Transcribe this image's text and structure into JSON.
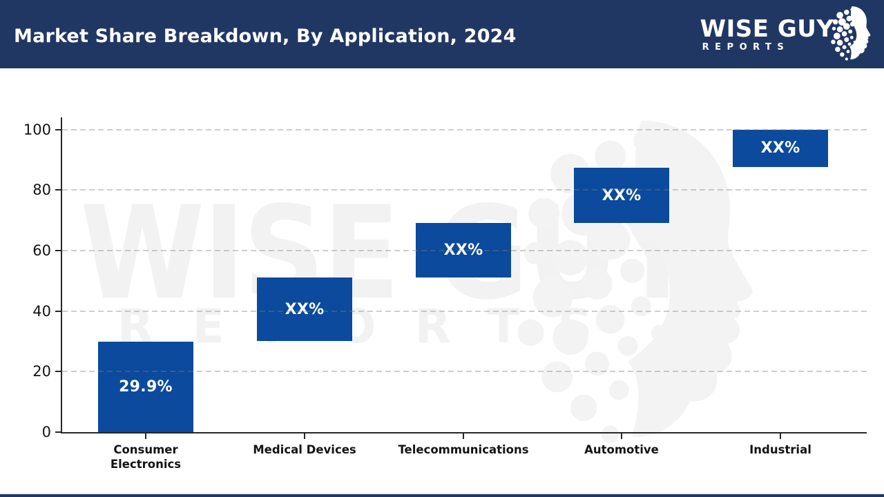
{
  "header": {
    "title": "Market Share Breakdown, By Application, 2024",
    "logo_name": "WISE GUY",
    "logo_sub": "REPORTS"
  },
  "watermark": {
    "line1": "WISE GUY",
    "line2": "REPORTS"
  },
  "colors": {
    "header_bg": "#213763",
    "bar": "#0b4a9c",
    "axis": "#262626",
    "grid": "#c9c9c9",
    "bar_label_text": "#ffffff",
    "watermark": "#f2f2f2"
  },
  "chart_data": {
    "type": "bar",
    "subtype": "waterfall-floating-bars",
    "title": "Market Share Breakdown, By Application, 2024",
    "categories": [
      "Consumer Electronics",
      "Medical Devices",
      "Telecommunications",
      "Automotive",
      "Industrial"
    ],
    "segments": [
      {
        "category": "Consumer Electronics",
        "start": 0,
        "end": 29.9,
        "label": "29.9%"
      },
      {
        "category": "Medical Devices",
        "start": 30,
        "end": 51,
        "label": "XX%"
      },
      {
        "category": "Telecommunications",
        "start": 51,
        "end": 69,
        "label": "XX%"
      },
      {
        "category": "Automotive",
        "start": 69,
        "end": 87.4,
        "label": "XX%"
      },
      {
        "category": "Industrial",
        "start": 87.5,
        "end": 100,
        "label": "XX%"
      }
    ],
    "ylim": [
      0,
      100
    ],
    "yticks": [
      0,
      20,
      40,
      60,
      80,
      100
    ],
    "xlabel": "",
    "ylabel": "",
    "grid": "horizontal-dashed",
    "legend": "none"
  }
}
